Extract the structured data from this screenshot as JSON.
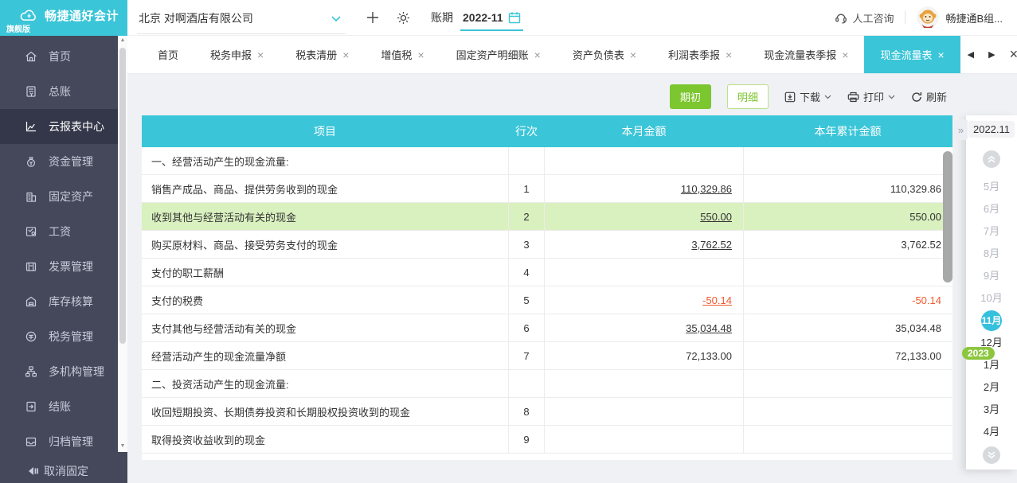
{
  "colors": {
    "brand_teal": "#3bc5d8",
    "button_green": "#7cc62f",
    "row_highlight_green": "#d9f0bf",
    "negative_red": "#f2592e",
    "year_badge_green": "#8cc63f",
    "sidebar_bg": "#45485a"
  },
  "brand": {
    "name": "畅捷通好会计",
    "edition": "旗舰版",
    "logo_icon": "cloud-icon"
  },
  "topbar": {
    "company": "北京 对啊酒店有限公司",
    "period_label": "账期",
    "period_value": "2022-11",
    "support_label": "人工咨询",
    "user_name": "畅捷通B组..."
  },
  "sidebar": {
    "items": [
      {
        "id": "home",
        "label": "首页",
        "icon": "home-icon"
      },
      {
        "id": "general-ledger",
        "label": "总账",
        "icon": "ledger-icon"
      },
      {
        "id": "cloud-reports",
        "label": "云报表中心",
        "icon": "report-chart-icon",
        "active": true
      },
      {
        "id": "funds",
        "label": "资金管理",
        "icon": "money-bag-icon"
      },
      {
        "id": "fixed-assets",
        "label": "固定资产",
        "icon": "building-icon"
      },
      {
        "id": "payroll",
        "label": "工资",
        "icon": "payroll-icon"
      },
      {
        "id": "invoice",
        "label": "发票管理",
        "icon": "invoice-icon"
      },
      {
        "id": "inventory",
        "label": "库存核算",
        "icon": "warehouse-icon"
      },
      {
        "id": "tax",
        "label": "税务管理",
        "icon": "tax-icon"
      },
      {
        "id": "multi-org",
        "label": "多机构管理",
        "icon": "org-chart-icon"
      },
      {
        "id": "closing",
        "label": "结账",
        "icon": "closing-icon"
      },
      {
        "id": "archive",
        "label": "归档管理",
        "icon": "archive-icon"
      }
    ],
    "unpin_label": "取消固定"
  },
  "tabs": {
    "items": [
      {
        "id": "home",
        "label": "首页",
        "closable": false
      },
      {
        "id": "tax-filing",
        "label": "税务申报",
        "closable": true
      },
      {
        "id": "tax-register",
        "label": "税表清册",
        "closable": true
      },
      {
        "id": "vat",
        "label": "增值税",
        "closable": true
      },
      {
        "id": "fixed-asset-ledger",
        "label": "固定资产明细账",
        "closable": true
      },
      {
        "id": "balance-sheet",
        "label": "资产负债表",
        "closable": true
      },
      {
        "id": "income-statement-quarterly",
        "label": "利润表季报",
        "closable": true
      },
      {
        "id": "cash-flow-quarterly",
        "label": "现金流量表季报",
        "closable": true
      },
      {
        "id": "cash-flow",
        "label": "现金流量表",
        "closable": true,
        "active": true
      }
    ]
  },
  "toolbar": {
    "opening_balance": "期初",
    "detail": "明细",
    "download": "下载",
    "print": "打印",
    "refresh": "刷新"
  },
  "report": {
    "columns": [
      "项目",
      "行次",
      "本月金额",
      "本年累计金额"
    ],
    "rows": [
      {
        "item": "一、经营活动产生的现金流量:",
        "line": "",
        "month": "",
        "ytd": ""
      },
      {
        "item": "销售产成品、商品、提供劳务收到的现金",
        "line": "1",
        "month": "110,329.86",
        "ytd": "110,329.86",
        "month_link": true
      },
      {
        "item": "收到其他与经营活动有关的现金",
        "line": "2",
        "month": "550.00",
        "ytd": "550.00",
        "month_link": true,
        "highlight": true
      },
      {
        "item": "购买原材料、商品、接受劳务支付的现金",
        "line": "3",
        "month": "3,762.52",
        "ytd": "3,762.52",
        "month_link": true
      },
      {
        "item": "支付的职工薪酬",
        "line": "4",
        "month": "",
        "ytd": ""
      },
      {
        "item": "支付的税费",
        "line": "5",
        "month": "-50.14",
        "ytd": "-50.14",
        "month_link": true,
        "negative": true
      },
      {
        "item": "支付其他与经营活动有关的现金",
        "line": "6",
        "month": "35,034.48",
        "ytd": "35,034.48",
        "month_link": true
      },
      {
        "item": "经营活动产生的现金流量净额",
        "line": "7",
        "month": "72,133.00",
        "ytd": "72,133.00"
      },
      {
        "item": "二、投资活动产生的现金流量:",
        "line": "",
        "month": "",
        "ytd": ""
      },
      {
        "item": "收回短期投资、长期债券投资和长期股权投资收到的现金",
        "line": "8",
        "month": "",
        "ytd": ""
      },
      {
        "item": "取得投资收益收到的现金",
        "line": "9",
        "month": "",
        "ytd": ""
      }
    ]
  },
  "period_panel": {
    "current": "2022.11",
    "year_badge": "2023",
    "months": [
      {
        "label": "5月",
        "state": "past"
      },
      {
        "label": "6月",
        "state": "past"
      },
      {
        "label": "7月",
        "state": "past"
      },
      {
        "label": "8月",
        "state": "past"
      },
      {
        "label": "9月",
        "state": "past"
      },
      {
        "label": "10月",
        "state": "past"
      },
      {
        "label": "11月",
        "state": "selected"
      },
      {
        "label": "12月",
        "state": "normal",
        "year_break_after": true
      },
      {
        "label": "1月",
        "state": "normal"
      },
      {
        "label": "2月",
        "state": "normal"
      },
      {
        "label": "3月",
        "state": "normal"
      },
      {
        "label": "4月",
        "state": "normal"
      }
    ]
  }
}
